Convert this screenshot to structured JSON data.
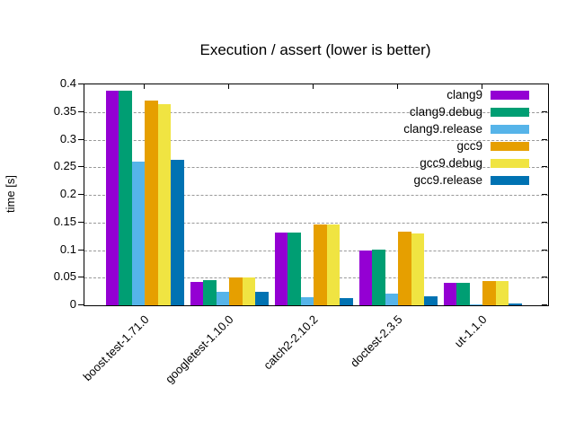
{
  "chart_data": {
    "type": "bar",
    "title": "Execution / assert (lower is better)",
    "ylabel": "time [s]",
    "xlabel": "",
    "ylim": [
      0,
      0.4
    ],
    "ytick_step": 0.05,
    "ytick_labels": [
      "0",
      "0.05",
      "0.1",
      "0.15",
      "0.2",
      "0.25",
      "0.3",
      "0.35",
      "0.4"
    ],
    "grid": true,
    "grid_style": "dashed",
    "legend_position": "top-right-inside",
    "categories": [
      "boost.test-1.71.0",
      "googletest-1.10.0",
      "catch2-2.10.2",
      "doctest-2.3.5",
      "ut-1.1.0"
    ],
    "series": [
      {
        "name": "clang9",
        "color": "#9400d3",
        "values": [
          0.388,
          0.043,
          0.132,
          0.1,
          0.04
        ]
      },
      {
        "name": "clang9.debug",
        "color": "#009e73",
        "values": [
          0.388,
          0.045,
          0.132,
          0.101,
          0.04
        ]
      },
      {
        "name": "clang9.release",
        "color": "#56b4e9",
        "values": [
          0.26,
          0.024,
          0.014,
          0.021,
          0.002
        ]
      },
      {
        "name": "gcc9",
        "color": "#e69f00",
        "values": [
          0.37,
          0.051,
          0.147,
          0.133,
          0.044
        ]
      },
      {
        "name": "gcc9.debug",
        "color": "#f0e442",
        "values": [
          0.365,
          0.051,
          0.147,
          0.13,
          0.044
        ]
      },
      {
        "name": "gcc9.release",
        "color": "#0072b2",
        "values": [
          0.263,
          0.024,
          0.013,
          0.017,
          0.003
        ]
      }
    ]
  },
  "colors": {
    "background": "#ffffff",
    "axis": "#000000",
    "grid": "#999999",
    "text": "#000000"
  }
}
